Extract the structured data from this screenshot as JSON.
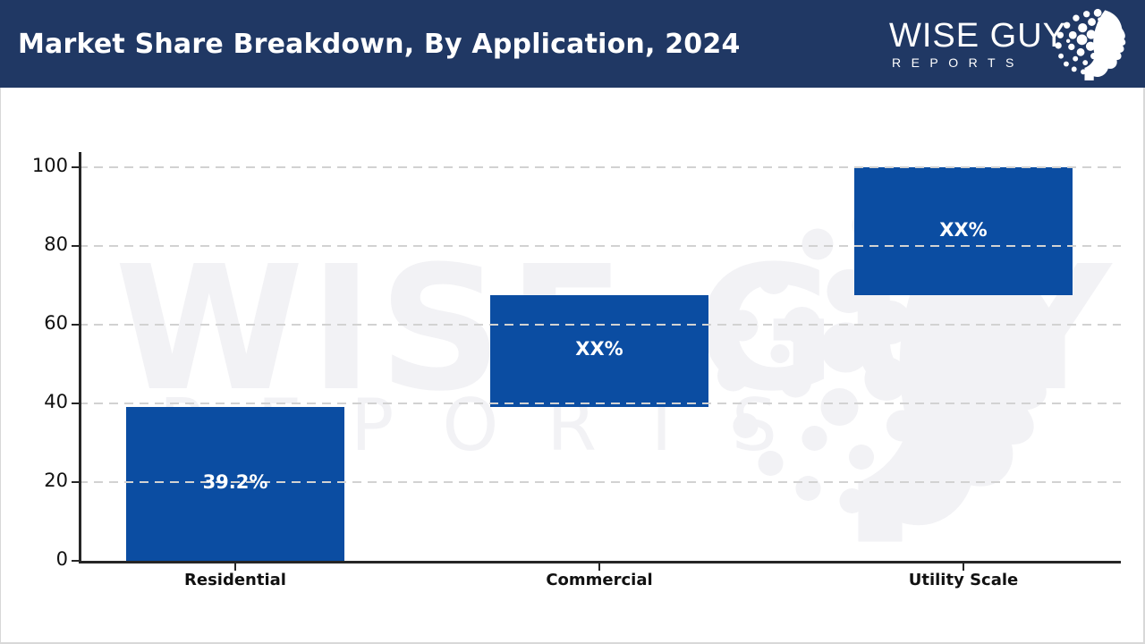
{
  "header": {
    "title": "Market Share Breakdown, By Application, 2024",
    "logo": {
      "line1": "WISE GUY",
      "line2": "REPORTS"
    }
  },
  "watermark": {
    "line1": "WISE GUY",
    "line2": "REPORTS"
  },
  "chart_data": {
    "type": "bar",
    "subtype": "floating-waterfall",
    "title": "Market Share Breakdown, By Application, 2024",
    "categories": [
      "Residential",
      "Commercial",
      "Utility Scale"
    ],
    "segments": [
      {
        "category": "Residential",
        "start": 0,
        "end": 39.2,
        "label": "39.2%"
      },
      {
        "category": "Commercial",
        "start": 39.2,
        "end": 67.4,
        "label": "XX%"
      },
      {
        "category": "Utility Scale",
        "start": 67.4,
        "end": 100,
        "label": "XX%"
      }
    ],
    "yticks": [
      0,
      20,
      40,
      60,
      80,
      100
    ],
    "ylim": [
      0,
      100
    ],
    "xlabel": "",
    "ylabel": "",
    "grid": "horizontal dashed, drawn over bars",
    "legend": "none"
  },
  "colors": {
    "header_bg": "#203864",
    "bar": "#0b4da2",
    "axis": "#262626",
    "grid": "#d2d2d2",
    "watermark": "#f2f2f5",
    "border": "#d8d8d8",
    "bar_label": "#ffffff"
  }
}
